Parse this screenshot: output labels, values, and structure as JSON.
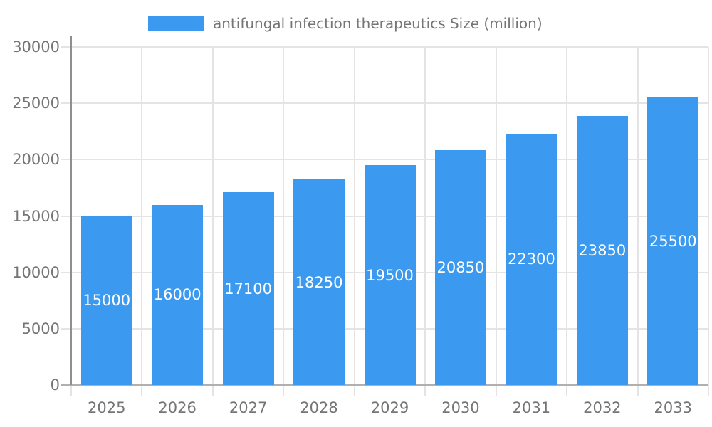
{
  "chart_data": {
    "type": "bar",
    "title": "antifungal infection therapeutics Size (million)",
    "categories": [
      "2025",
      "2026",
      "2027",
      "2028",
      "2029",
      "2030",
      "2031",
      "2032",
      "2033"
    ],
    "values": [
      15000,
      16000,
      17100,
      18250,
      19500,
      20850,
      22300,
      23850,
      25500
    ],
    "xlabel": "",
    "ylabel": "",
    "ylim": [
      0,
      30000
    ],
    "yticks": [
      0,
      5000,
      10000,
      15000,
      20000,
      25000,
      30000
    ],
    "grid": true,
    "legend_position": "top",
    "value_label_position": "inside-center"
  },
  "legend": {
    "label": "antifungal infection therapeutics Size (million)"
  },
  "colors": {
    "bar": "#3B9AEF",
    "value_label": "#FFFFFF",
    "axis_text": "#757575",
    "grid_line": "#E4E4E4",
    "y_axis_line": "#8F8F8F",
    "x_axis_line": "#B0B0B0",
    "background": "#FFFFFF"
  }
}
